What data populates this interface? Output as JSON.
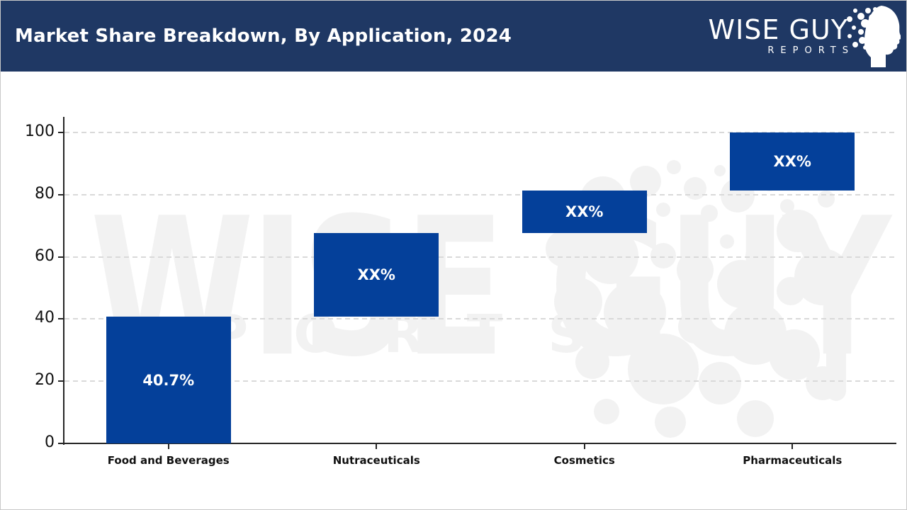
{
  "header": {
    "title": "Market Share Breakdown, By Application, 2024",
    "bg_color": "#1f3864",
    "logo": {
      "line1": "WISE GUY",
      "line2": "REPORTS"
    }
  },
  "watermark": {
    "line1": "WISE GUY",
    "line2": "PORTS"
  },
  "chart_data": {
    "type": "bar",
    "subtype": "waterfall",
    "title": "Market Share Breakdown, By Application, 2024",
    "categories": [
      "Food and Beverages",
      "Nutraceuticals",
      "Cosmetics",
      "Pharmaceuticals"
    ],
    "segments": [
      {
        "start": 0,
        "end": 40.7,
        "label": "40.7%"
      },
      {
        "start": 40.7,
        "end": 67.7,
        "label": "XX%"
      },
      {
        "start": 67.7,
        "end": 81.4,
        "label": "XX%"
      },
      {
        "start": 81.4,
        "end": 100,
        "label": "XX%"
      }
    ],
    "yticks": [
      0,
      20,
      40,
      60,
      80,
      100
    ],
    "ylim": [
      0,
      105
    ],
    "xlabel": "",
    "ylabel": "",
    "grid": true,
    "legend": "none",
    "bar_color": "#04409a",
    "bar_label_color": "#ffffff",
    "gridline_color": "#d9d9d9",
    "axis_color": "#262626"
  }
}
